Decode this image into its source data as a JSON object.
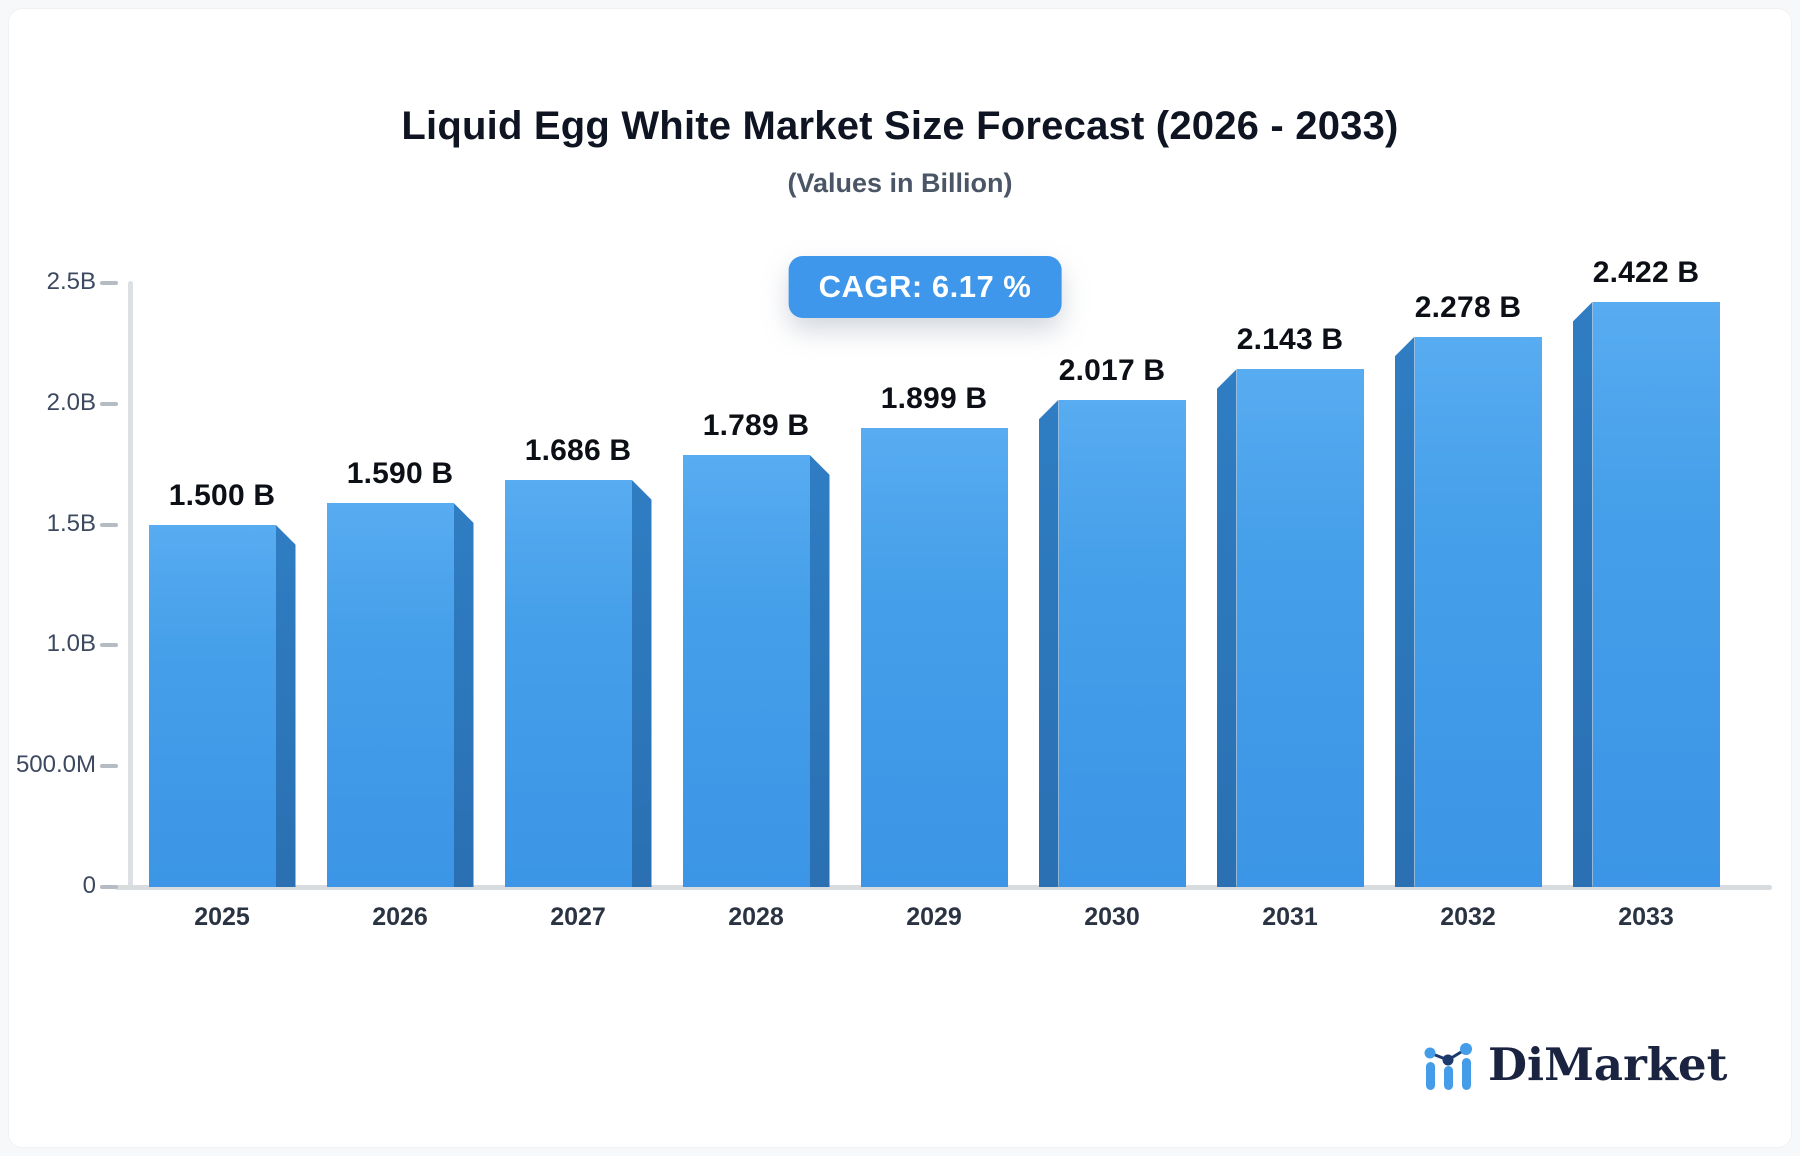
{
  "header": {
    "title": "Liquid Egg White Market Size Forecast (2026 - 2033)",
    "subtitle": "(Values in Billion)"
  },
  "badge": {
    "label": "CAGR: 6.17 %"
  },
  "chart_data": {
    "type": "bar",
    "title": "Liquid Egg White Market Size Forecast (2026 - 2033)",
    "subtitle": "(Values in Billion)",
    "cagr": "6.17 %",
    "categories": [
      "2025",
      "2026",
      "2027",
      "2028",
      "2029",
      "2030",
      "2031",
      "2032",
      "2033"
    ],
    "values": [
      1.5,
      1.59,
      1.686,
      1.789,
      1.899,
      2.017,
      2.143,
      2.278,
      2.422
    ],
    "value_labels": [
      "1.500 B",
      "1.590 B",
      "1.686 B",
      "1.789 B",
      "1.899 B",
      "2.017 B",
      "2.143 B",
      "2.278 B",
      "2.422 B"
    ],
    "ylabel": "",
    "xlabel": "",
    "ylim": [
      0,
      2.5
    ],
    "yticks": [
      {
        "label": "2.5B",
        "value": 2.5
      },
      {
        "label": "2.0B",
        "value": 2.0
      },
      {
        "label": "1.5B",
        "value": 1.5
      },
      {
        "label": "1.0B",
        "value": 1.0
      },
      {
        "label": "500.0M",
        "value": 0.5
      },
      {
        "label": "0",
        "value": 0.0
      }
    ],
    "grid": false,
    "legend": false,
    "units": "Billion USD"
  },
  "colors": {
    "bar_face_top": "#58acf1",
    "bar_face_bottom": "#3c95e6",
    "bar_side": "#2d79bd",
    "badge_bg": "#3e97eb",
    "badge_text": "#ffffff",
    "axis": "#d8dcdf",
    "title_text": "#0e1422",
    "logo_navy": "#1a2440",
    "logo_blue": "#459ce8"
  },
  "logo": {
    "text": "DiMarket",
    "icon": "mini-bar-chart-icon"
  }
}
